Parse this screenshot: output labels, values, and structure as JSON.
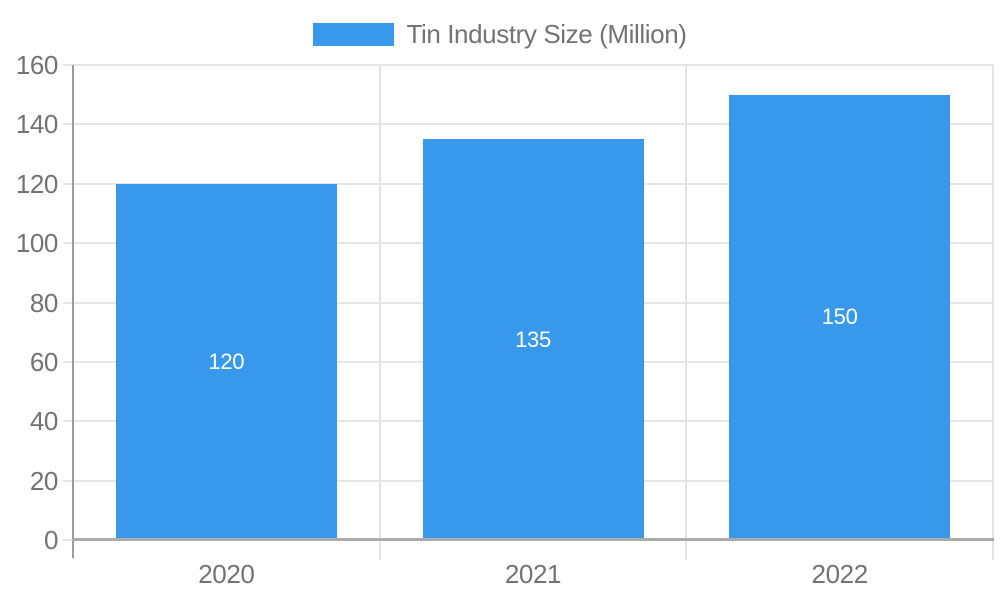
{
  "chart_data": {
    "type": "bar",
    "title": "",
    "legend_label": "Tin Industry Size (Million)",
    "legend_position": "top",
    "categories": [
      "2020",
      "2021",
      "2022"
    ],
    "values": [
      120,
      135,
      150
    ],
    "value_labels": [
      "120",
      "135",
      "150"
    ],
    "yticks": [
      0,
      20,
      40,
      60,
      80,
      100,
      120,
      140,
      160
    ],
    "ylim": [
      0,
      160
    ],
    "xlabel": "",
    "ylabel": "",
    "grid": true,
    "colors": {
      "bar": "#3899EC",
      "value_label": "#FFFFFF",
      "axis_text": "#737373",
      "grid_line": "#E6E6E6",
      "separator_line": "#E3E3E3",
      "axis_line": "#9C9C9C",
      "baseline": "#ABABAB",
      "background": "#FFFFFF"
    }
  }
}
